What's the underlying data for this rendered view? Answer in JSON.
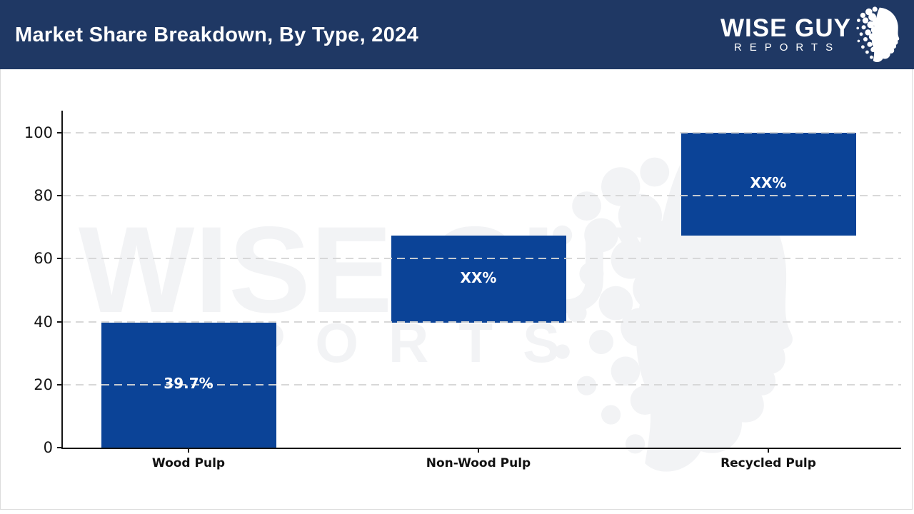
{
  "header": {
    "title": "Market Share Breakdown, By Type, 2024",
    "bg_color": "#1f3864",
    "logo": {
      "line1": "WISE GUY",
      "line2": "REPORTS"
    }
  },
  "watermark": {
    "line1": "WISE GUY",
    "line2": "REPORTS"
  },
  "chart_data": {
    "type": "bar",
    "variant": "waterfall",
    "title": "Market Share Breakdown, By Type, 2024",
    "categories": [
      "Wood Pulp",
      "Non-Wood Pulp",
      "Recycled Pulp"
    ],
    "series": [
      {
        "name": "Wood Pulp",
        "start": 0,
        "end": 39.7,
        "label": "39.7%"
      },
      {
        "name": "Non-Wood Pulp",
        "start": 39.7,
        "end": 67.3,
        "label": "XX%"
      },
      {
        "name": "Recycled Pulp",
        "start": 67.3,
        "end": 100,
        "label": "XX%"
      }
    ],
    "yticks": [
      0,
      20,
      40,
      60,
      80,
      100
    ],
    "ylim": [
      0,
      107
    ],
    "bar_color": "#0b4397",
    "grid": {
      "axis": "y",
      "style": "dashed",
      "color": "#d5d5d5"
    },
    "legend": "none"
  }
}
